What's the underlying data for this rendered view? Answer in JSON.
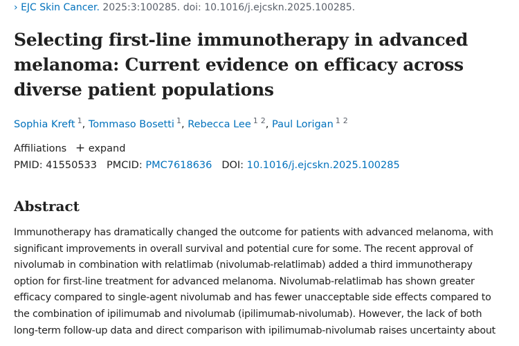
{
  "citation": {
    "journal": "EJC Skin Cancer.",
    "details": "2025:3:100285. doi: 10.1016/j.ejcskn.2025.100285."
  },
  "title": [
    "Selecting first-line immunotherapy in advanced",
    "melanoma: Current evidence on efficacy across",
    "diverse patient populations"
  ],
  "author_separator": ",",
  "authors": [
    {
      "name": "Sophia Kreft",
      "affiliations": [
        "1"
      ]
    },
    {
      "name": "Tommaso Bosetti",
      "affiliations": [
        "1"
      ]
    },
    {
      "name": "Rebecca Lee",
      "affiliations": [
        "1",
        "2"
      ]
    },
    {
      "name": "Paul Lorigan",
      "affiliations": [
        "1",
        "2"
      ]
    }
  ],
  "affiliations": {
    "label": "Affiliations",
    "toggle": "expand"
  },
  "identifiers": [
    {
      "label": "PMID:",
      "value": "41550533"
    },
    {
      "label": "PMCID:",
      "value": "PMC7618636"
    },
    {
      "label": "DOI:",
      "value": "10.1016/j.ejcskn.2025.100285"
    }
  ],
  "abstract": {
    "heading": "Abstract",
    "lines": [
      "Immunotherapy has dramatically changed the outcome for patients with advanced melanoma, with",
      "significant improvements in overall survival and potential cure for some. The recent approval of",
      "nivolumab in combination with relatlimab (nivolumab-relatlimab) added a third immunotherapy",
      "option for first-line treatment for advanced melanoma. Nivolumab-relatlimab has shown greater",
      "efficacy compared to single-agent nivolumab and has fewer unacceptable side effects compared to",
      "the combination of ipilimumab and nivolumab (ipilimumab-nivolumab). However, the lack of both",
      "long-term follow-up data and direct comparison with ipilimumab-nivolumab raises uncertainty about"
    ]
  }
}
